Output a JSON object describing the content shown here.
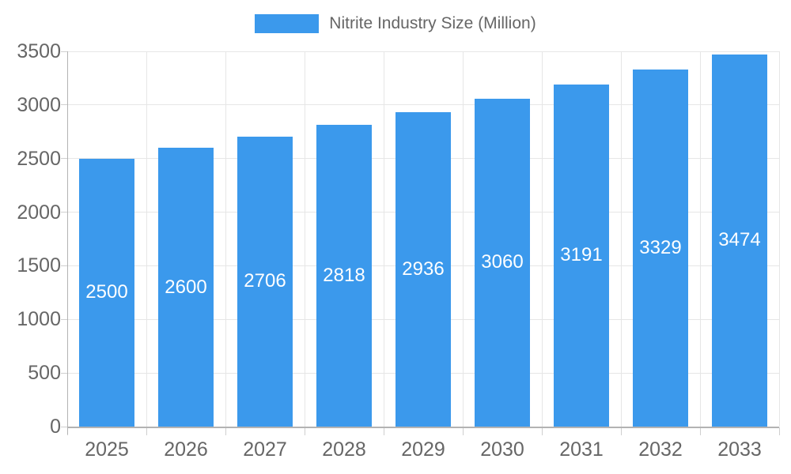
{
  "chart_data": {
    "type": "bar",
    "title": "Nitrite Industry Size (Million)",
    "categories": [
      "2025",
      "2026",
      "2027",
      "2028",
      "2029",
      "2030",
      "2031",
      "2032",
      "2033"
    ],
    "series": [
      {
        "name": "Nitrite Industry Size (Million)",
        "values": [
          2500,
          2600,
          2706,
          2818,
          2936,
          3060,
          3191,
          3329,
          3474
        ]
      }
    ],
    "xlabel": "",
    "ylabel": "",
    "ylim": [
      0,
      3500
    ],
    "yticks": [
      0,
      500,
      1000,
      1500,
      2000,
      2500,
      3000,
      3500
    ],
    "grid": true,
    "legend_position": "top-center",
    "value_labels": "inside-center-white",
    "colors": {
      "bar": "#3B99EC",
      "value_label": "#FFFFFF",
      "axis_text": "#666666",
      "legend_text": "#666666",
      "gridline": "#E6E6E6",
      "axis_line": "#B3B3B3",
      "tick": "#CFCFCF",
      "background": "#FFFFFF"
    }
  }
}
